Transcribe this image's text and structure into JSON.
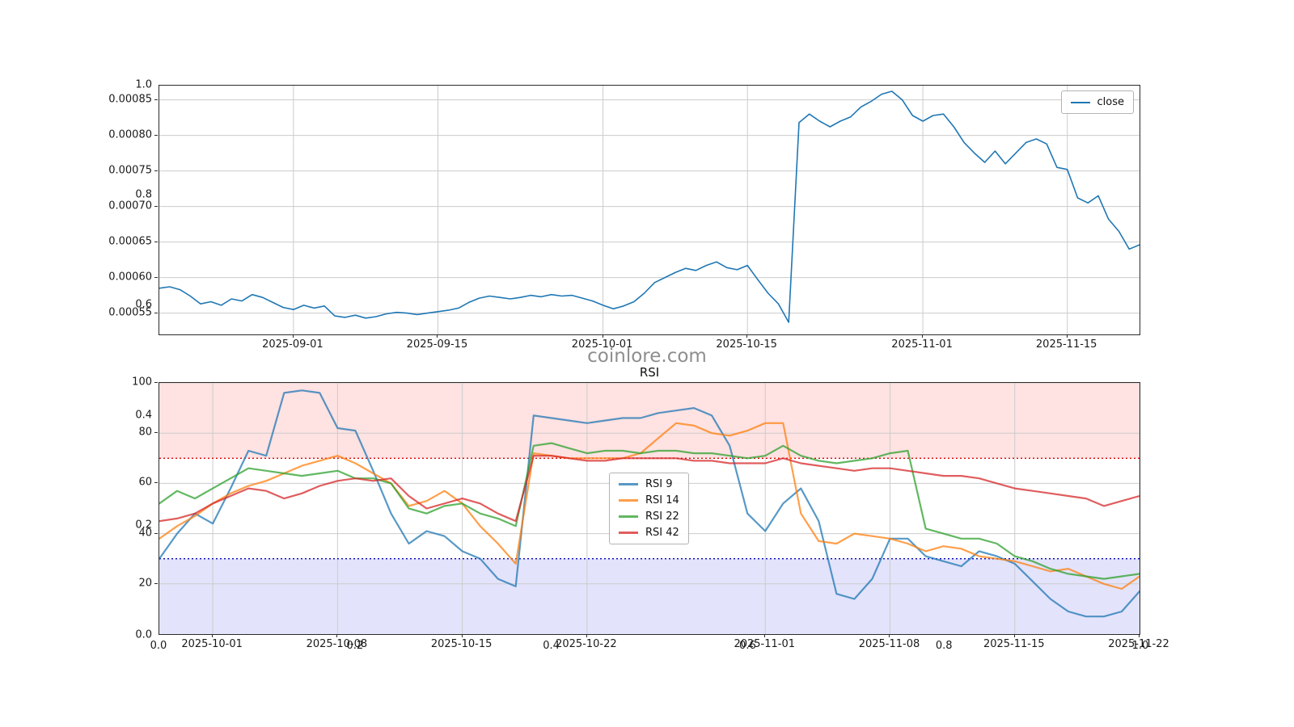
{
  "watermark": "coinlore.com",
  "parent_axes": {
    "ytick_labels": [
      "1.0",
      "0.8",
      "0.6",
      "0.4",
      "0.2",
      "0.0"
    ],
    "xtick_labels": [
      "0.0",
      "0.2",
      "0.4",
      "0.6",
      "0.8",
      "1.0"
    ]
  },
  "colors": {
    "grid": "#cccccc",
    "spine": "#2b2b2b",
    "overbought_band": "rgba(255,30,30,0.13)",
    "oversold_band": "rgba(60,60,230,0.14)",
    "overbought_line": "#dd0000",
    "oversold_line": "#0000bb"
  },
  "chart_data": [
    {
      "type": "line",
      "title": "",
      "legend_position": "upper right",
      "grid": true,
      "line_width": 1.6,
      "line_opacity": 1,
      "ylim": [
        0.00052,
        0.00087
      ],
      "yticks": [
        0.00055,
        0.0006,
        0.00065,
        0.0007,
        0.00075,
        0.0008,
        0.00085
      ],
      "ytick_labels": [
        "0.00055",
        "0.00060",
        "0.00065",
        "0.00070",
        "0.00075",
        "0.00080",
        "0.00085"
      ],
      "xticks": [
        "2025-09-01",
        "2025-09-15",
        "2025-10-01",
        "2025-10-15",
        "2025-11-01",
        "2025-11-15"
      ],
      "x": [
        "2025-08-19",
        "2025-08-20",
        "2025-08-21",
        "2025-08-22",
        "2025-08-23",
        "2025-08-24",
        "2025-08-25",
        "2025-08-26",
        "2025-08-27",
        "2025-08-28",
        "2025-08-29",
        "2025-08-30",
        "2025-08-31",
        "2025-09-01",
        "2025-09-02",
        "2025-09-03",
        "2025-09-04",
        "2025-09-05",
        "2025-09-06",
        "2025-09-07",
        "2025-09-08",
        "2025-09-09",
        "2025-09-10",
        "2025-09-11",
        "2025-09-12",
        "2025-09-13",
        "2025-09-14",
        "2025-09-15",
        "2025-09-16",
        "2025-09-17",
        "2025-09-18",
        "2025-09-19",
        "2025-09-20",
        "2025-09-21",
        "2025-09-22",
        "2025-09-23",
        "2025-09-24",
        "2025-09-25",
        "2025-09-26",
        "2025-09-27",
        "2025-09-28",
        "2025-09-29",
        "2025-09-30",
        "2025-10-01",
        "2025-10-02",
        "2025-10-03",
        "2025-10-04",
        "2025-10-05",
        "2025-10-06",
        "2025-10-07",
        "2025-10-08",
        "2025-10-09",
        "2025-10-10",
        "2025-10-11",
        "2025-10-12",
        "2025-10-13",
        "2025-10-14",
        "2025-10-15",
        "2025-10-16",
        "2025-10-17",
        "2025-10-18",
        "2025-10-19",
        "2025-10-20",
        "2025-10-21",
        "2025-10-22",
        "2025-10-23",
        "2025-10-24",
        "2025-10-25",
        "2025-10-26",
        "2025-10-27",
        "2025-10-28",
        "2025-10-29",
        "2025-10-30",
        "2025-10-31",
        "2025-11-01",
        "2025-11-02",
        "2025-11-03",
        "2025-11-04",
        "2025-11-05",
        "2025-11-06",
        "2025-11-07",
        "2025-11-08",
        "2025-11-09",
        "2025-11-10",
        "2025-11-11",
        "2025-11-12",
        "2025-11-13",
        "2025-11-14",
        "2025-11-15",
        "2025-11-16",
        "2025-11-17",
        "2025-11-18",
        "2025-11-19",
        "2025-11-20",
        "2025-11-21",
        "2025-11-22"
      ],
      "series": [
        {
          "name": "close",
          "color": "#1f77b4",
          "values": [
            0.000585,
            0.000587,
            0.000583,
            0.000574,
            0.000563,
            0.000566,
            0.000561,
            0.00057,
            0.000567,
            0.000576,
            0.000572,
            0.000565,
            0.000558,
            0.000555,
            0.000561,
            0.000557,
            0.00056,
            0.000546,
            0.000544,
            0.000547,
            0.000543,
            0.000545,
            0.000549,
            0.000551,
            0.00055,
            0.000548,
            0.00055,
            0.000552,
            0.000554,
            0.000557,
            0.000565,
            0.000571,
            0.000574,
            0.000572,
            0.00057,
            0.000572,
            0.000575,
            0.000573,
            0.000576,
            0.000574,
            0.000575,
            0.000571,
            0.000567,
            0.000561,
            0.000556,
            0.00056,
            0.000566,
            0.000578,
            0.000593,
            0.0006,
            0.000607,
            0.000613,
            0.00061,
            0.000617,
            0.000622,
            0.000614,
            0.000611,
            0.000617,
            0.000597,
            0.000578,
            0.000563,
            0.000537,
            0.000818,
            0.00083,
            0.00082,
            0.000812,
            0.00082,
            0.000826,
            0.00084,
            0.000848,
            0.000858,
            0.000862,
            0.00085,
            0.000828,
            0.00082,
            0.000828,
            0.00083,
            0.000812,
            0.00079,
            0.000775,
            0.000762,
            0.000778,
            0.00076,
            0.000775,
            0.00079,
            0.000795,
            0.000788,
            0.000755,
            0.000752,
            0.000712,
            0.000705,
            0.000715,
            0.000682,
            0.000665,
            0.00064,
            0.000646
          ]
        }
      ]
    },
    {
      "type": "line",
      "title": "RSI",
      "legend_position": "center",
      "grid": true,
      "line_width": 2.2,
      "line_opacity": 0.75,
      "ylim": [
        0,
        100
      ],
      "yticks": [
        20,
        40,
        60,
        80,
        100
      ],
      "ytick_labels": [
        "20",
        "40",
        "60",
        "80",
        "100"
      ],
      "xticks": [
        "2025-10-01",
        "2025-10-08",
        "2025-10-15",
        "2025-10-22",
        "2025-11-01",
        "2025-11-08",
        "2025-11-15",
        "2025-11-22"
      ],
      "bands": [
        {
          "from": 70,
          "to": 100,
          "color": "rgba(255,30,30,0.13)",
          "label": "overbought"
        },
        {
          "from": 0,
          "to": 30,
          "color": "rgba(60,60,230,0.14)",
          "label": "oversold"
        }
      ],
      "hlines": [
        {
          "y": 70,
          "color": "#dd0000",
          "style": "dotted"
        },
        {
          "y": 30,
          "color": "#0000bb",
          "style": "dotted"
        }
      ],
      "x": [
        "2025-09-28",
        "2025-09-29",
        "2025-09-30",
        "2025-10-01",
        "2025-10-02",
        "2025-10-03",
        "2025-10-04",
        "2025-10-05",
        "2025-10-06",
        "2025-10-07",
        "2025-10-08",
        "2025-10-09",
        "2025-10-10",
        "2025-10-11",
        "2025-10-12",
        "2025-10-13",
        "2025-10-14",
        "2025-10-15",
        "2025-10-16",
        "2025-10-17",
        "2025-10-18",
        "2025-10-19",
        "2025-10-20",
        "2025-10-21",
        "2025-10-22",
        "2025-10-23",
        "2025-10-24",
        "2025-10-25",
        "2025-10-26",
        "2025-10-27",
        "2025-10-28",
        "2025-10-29",
        "2025-10-30",
        "2025-10-31",
        "2025-11-01",
        "2025-11-02",
        "2025-11-03",
        "2025-11-04",
        "2025-11-05",
        "2025-11-06",
        "2025-11-07",
        "2025-11-08",
        "2025-11-09",
        "2025-11-10",
        "2025-11-11",
        "2025-11-12",
        "2025-11-13",
        "2025-11-14",
        "2025-11-15",
        "2025-11-16",
        "2025-11-17",
        "2025-11-18",
        "2025-11-19",
        "2025-11-20",
        "2025-11-21",
        "2025-11-22"
      ],
      "series": [
        {
          "name": "RSI 9",
          "color": "#1f77b4",
          "values": [
            30,
            40,
            48,
            44,
            58,
            73,
            71,
            96,
            97,
            96,
            82,
            81,
            65,
            48,
            36,
            41,
            39,
            33,
            30,
            22,
            19,
            87,
            86,
            85,
            84,
            85,
            86,
            86,
            88,
            89,
            90,
            87,
            75,
            48,
            41,
            52,
            58,
            45,
            16,
            14,
            22,
            38,
            38,
            31,
            29,
            27,
            33,
            31,
            28,
            21,
            14,
            9,
            7,
            7,
            9,
            17
          ]
        },
        {
          "name": "RSI 14",
          "color": "#ff7f0e",
          "values": [
            38,
            43,
            47,
            52,
            56,
            59,
            61,
            64,
            67,
            69,
            71,
            68,
            64,
            60,
            51,
            53,
            57,
            52,
            43,
            36,
            28,
            72,
            71,
            70,
            70,
            70,
            70,
            72,
            78,
            84,
            83,
            80,
            79,
            81,
            84,
            84,
            48,
            37,
            36,
            40,
            39,
            38,
            36,
            33,
            35,
            34,
            31,
            30,
            29,
            27,
            25,
            26,
            23,
            20,
            18,
            23
          ]
        },
        {
          "name": "RSI 22",
          "color": "#2ca02c",
          "values": [
            52,
            57,
            54,
            58,
            62,
            66,
            65,
            64,
            63,
            64,
            65,
            62,
            62,
            60,
            50,
            48,
            51,
            52,
            48,
            46,
            43,
            75,
            76,
            74,
            72,
            73,
            73,
            72,
            73,
            73,
            72,
            72,
            71,
            70,
            71,
            75,
            71,
            69,
            68,
            69,
            70,
            72,
            73,
            42,
            40,
            38,
            38,
            36,
            31,
            29,
            26,
            24,
            23,
            22,
            23,
            24
          ]
        },
        {
          "name": "RSI 42",
          "color": "#d62728",
          "values": [
            45,
            46,
            48,
            52,
            55,
            58,
            57,
            54,
            56,
            59,
            61,
            62,
            61,
            62,
            55,
            50,
            52,
            54,
            52,
            48,
            45,
            71,
            71,
            70,
            69,
            69,
            70,
            70,
            70,
            70,
            69,
            69,
            68,
            68,
            68,
            70,
            68,
            67,
            66,
            65,
            66,
            66,
            65,
            64,
            63,
            63,
            62,
            60,
            58,
            57,
            56,
            55,
            54,
            51,
            53,
            55
          ]
        }
      ]
    }
  ]
}
